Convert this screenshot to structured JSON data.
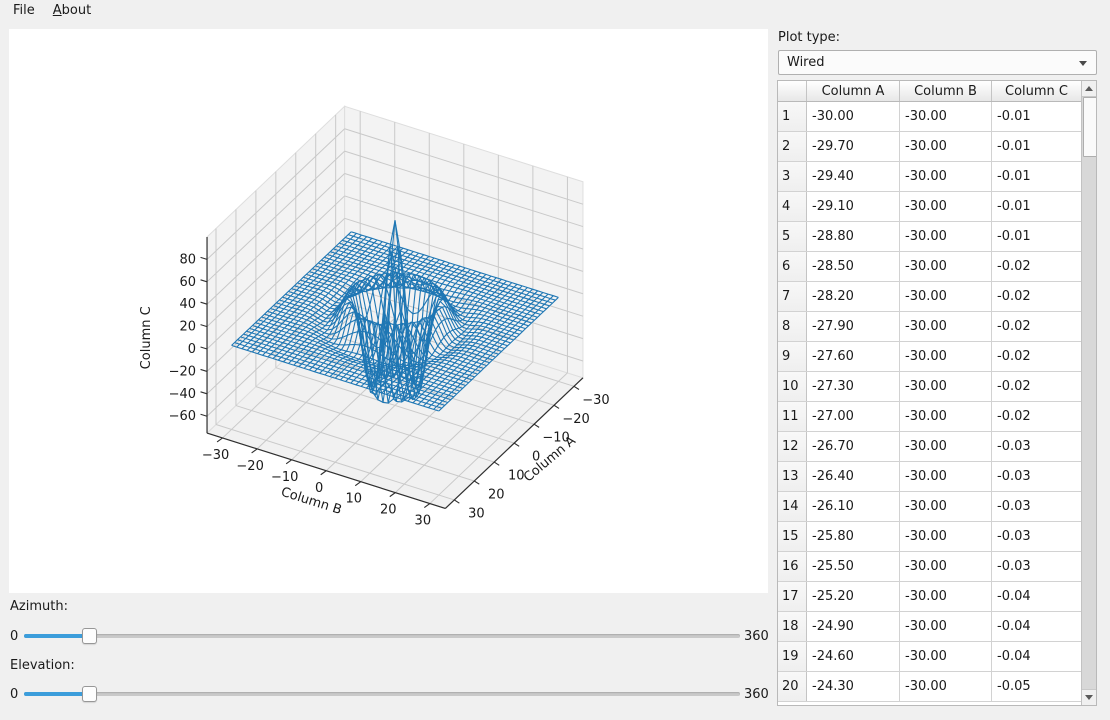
{
  "menu": {
    "items": [
      {
        "label": "File"
      },
      {
        "label": "About",
        "underline_index": 0
      }
    ]
  },
  "plot": {
    "chart_data": {
      "type": "wireframe-3d",
      "xlabel": "Column A",
      "ylabel": "Column B",
      "zlabel": "Column C",
      "xticks": [
        -30,
        -20,
        -10,
        0,
        10,
        20,
        30
      ],
      "yticks": [
        -30,
        -20,
        -10,
        0,
        10,
        20,
        30
      ],
      "zticks": [
        80,
        60,
        40,
        20,
        0,
        -20,
        -40,
        -60
      ],
      "xlim": [
        -34.5,
        34.5
      ],
      "ylim": [
        -34.5,
        34.5
      ],
      "zlim_draw": [
        -75,
        100
      ],
      "view": {
        "azimuth_deg": 30,
        "elevation_deg": 30
      },
      "surface": {
        "formula": "z = 90*cos(0.5*r)*exp(-(r/10)^2), r = sqrt(x^2+y^2)",
        "amplitude": 90,
        "omega": 0.5,
        "sigma": 10,
        "domain": [
          -30,
          30
        ],
        "grid_lines": 41
      },
      "line_color": "#1f77b4",
      "grid": true
    }
  },
  "right_panel": {
    "plot_type_label": "Plot type:",
    "plot_type_value": "Wired",
    "table": {
      "headers": [
        "Column A",
        "Column B",
        "Column C"
      ],
      "rows": [
        {
          "n": "1",
          "a": "-30.00",
          "b": "-30.00",
          "c": "-0.01"
        },
        {
          "n": "2",
          "a": "-29.70",
          "b": "-30.00",
          "c": "-0.01"
        },
        {
          "n": "3",
          "a": "-29.40",
          "b": "-30.00",
          "c": "-0.01"
        },
        {
          "n": "4",
          "a": "-29.10",
          "b": "-30.00",
          "c": "-0.01"
        },
        {
          "n": "5",
          "a": "-28.80",
          "b": "-30.00",
          "c": "-0.01"
        },
        {
          "n": "6",
          "a": "-28.50",
          "b": "-30.00",
          "c": "-0.02"
        },
        {
          "n": "7",
          "a": "-28.20",
          "b": "-30.00",
          "c": "-0.02"
        },
        {
          "n": "8",
          "a": "-27.90",
          "b": "-30.00",
          "c": "-0.02"
        },
        {
          "n": "9",
          "a": "-27.60",
          "b": "-30.00",
          "c": "-0.02"
        },
        {
          "n": "10",
          "a": "-27.30",
          "b": "-30.00",
          "c": "-0.02"
        },
        {
          "n": "11",
          "a": "-27.00",
          "b": "-30.00",
          "c": "-0.02"
        },
        {
          "n": "12",
          "a": "-26.70",
          "b": "-30.00",
          "c": "-0.03"
        },
        {
          "n": "13",
          "a": "-26.40",
          "b": "-30.00",
          "c": "-0.03"
        },
        {
          "n": "14",
          "a": "-26.10",
          "b": "-30.00",
          "c": "-0.03"
        },
        {
          "n": "15",
          "a": "-25.80",
          "b": "-30.00",
          "c": "-0.03"
        },
        {
          "n": "16",
          "a": "-25.50",
          "b": "-30.00",
          "c": "-0.03"
        },
        {
          "n": "17",
          "a": "-25.20",
          "b": "-30.00",
          "c": "-0.04"
        },
        {
          "n": "18",
          "a": "-24.90",
          "b": "-30.00",
          "c": "-0.04"
        },
        {
          "n": "19",
          "a": "-24.60",
          "b": "-30.00",
          "c": "-0.04"
        },
        {
          "n": "20",
          "a": "-24.30",
          "b": "-30.00",
          "c": "-0.05"
        }
      ]
    }
  },
  "sliders": {
    "azimuth": {
      "label": "Azimuth:",
      "min_label": "0",
      "max_label": "360",
      "value": 30,
      "max": 360
    },
    "elevation": {
      "label": "Elevation:",
      "min_label": "0",
      "max_label": "360",
      "value": 30,
      "max": 360
    }
  },
  "colors": {
    "wireframe": "#1f77b4",
    "slider_fill": "#3b9ddb",
    "pane": "#f3f3f3",
    "grid_line": "#c9c9c9"
  }
}
